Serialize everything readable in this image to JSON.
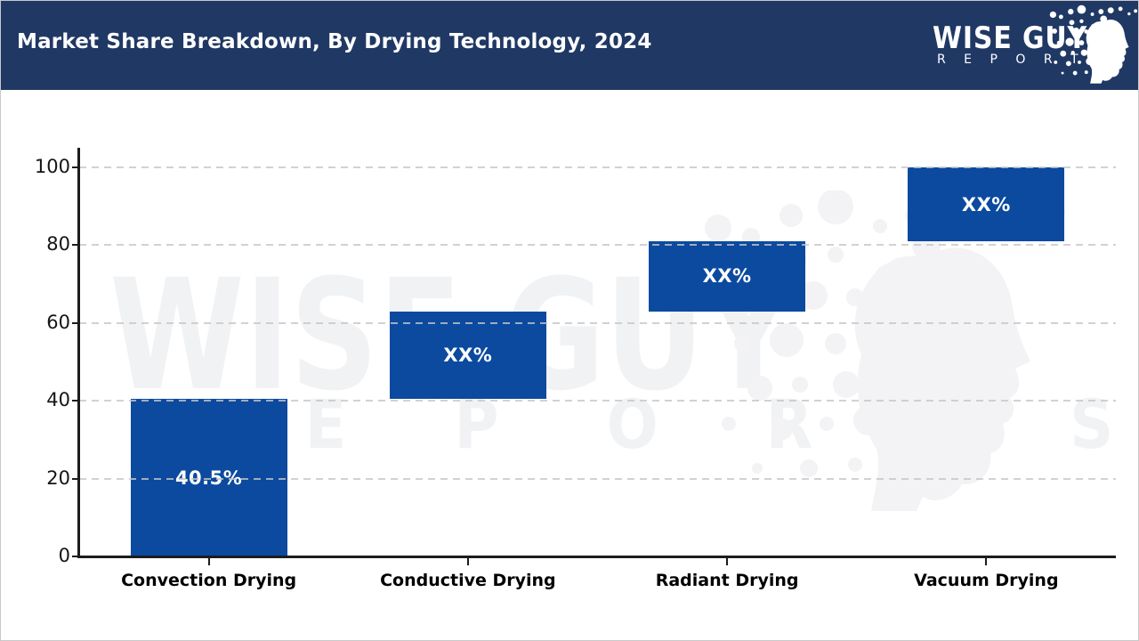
{
  "header": {
    "title": "Market Share Breakdown, By Drying Technology, 2024",
    "logo": {
      "line1": "WISE GUY",
      "line2": "R E P O R T S"
    }
  },
  "watermark": {
    "line1": "WISE GUY",
    "line2": "R E P O R T S"
  },
  "colors": {
    "header_bg": "#203864",
    "bar": "#0b4a9f",
    "bar_label": "#ffffff",
    "axis": "#1c1c1c",
    "gridline": "#c6c6c6",
    "watermark": "#f1f2f4",
    "page_border": "#c9c9c9"
  },
  "chart_data": {
    "type": "bar",
    "subtype": "waterfall",
    "title": "Market Share Breakdown, By Drying Technology, 2024",
    "categories": [
      "Convection Drying",
      "Conductive Drying",
      "Radiant Drying",
      "Vacuum Drying"
    ],
    "segments": [
      {
        "category": "Convection Drying",
        "start": 0,
        "end": 40.5,
        "label": "40.5%"
      },
      {
        "category": "Conductive Drying",
        "start": 40.5,
        "end": 63,
        "label": "XX%"
      },
      {
        "category": "Radiant Drying",
        "start": 63,
        "end": 81,
        "label": "XX%"
      },
      {
        "category": "Vacuum Drying",
        "start": 81,
        "end": 100,
        "label": "XX%"
      }
    ],
    "xlabel": "",
    "ylabel": "",
    "ylim": [
      0,
      100
    ],
    "yticks": [
      0,
      20,
      40,
      60,
      80,
      100
    ],
    "grid": "dashed-horizontal-over-bars",
    "legend": "none"
  }
}
